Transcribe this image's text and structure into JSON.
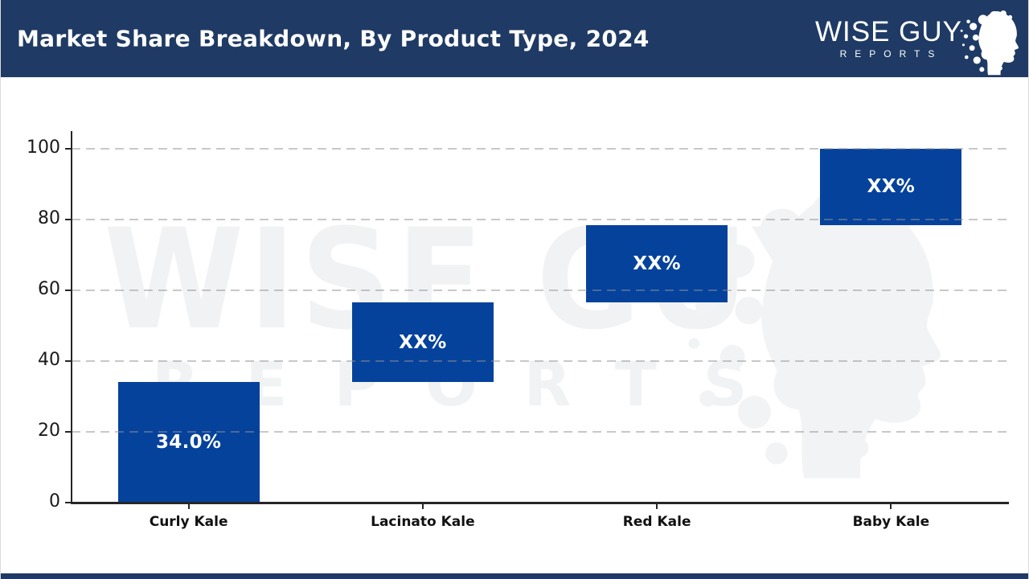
{
  "header": {
    "title": "Market Share Breakdown, By Product Type, 2024",
    "bg_color": "#1f3a64",
    "logo": {
      "line1": "WISE GUY",
      "line2": "REPORTS"
    }
  },
  "watermark": {
    "line1": "WISE GUY",
    "line2": "REPORTS"
  },
  "chart_data": {
    "type": "bar",
    "subtype": "waterfall",
    "title": "Market Share Breakdown, By Product Type, 2024",
    "categories": [
      "Curly Kale",
      "Lacinato Kale",
      "Red Kale",
      "Baby Kale"
    ],
    "segments": [
      {
        "category": "Curly Kale",
        "start": 0,
        "end": 34,
        "label": "34.0%"
      },
      {
        "category": "Lacinato Kale",
        "start": 34,
        "end": 56.5,
        "label": "XX%"
      },
      {
        "category": "Red Kale",
        "start": 56.5,
        "end": 78.5,
        "label": "XX%"
      },
      {
        "category": "Baby Kale",
        "start": 78.5,
        "end": 100,
        "label": "XX%"
      }
    ],
    "values": [
      34,
      22.5,
      22,
      21.5
    ],
    "xlabel": "",
    "ylabel": "",
    "ylim": [
      0,
      105
    ],
    "yticks": [
      0,
      20,
      40,
      60,
      80,
      100
    ],
    "grid": "horizontal dashed gridlines over bars",
    "legend": "none",
    "bar_color": "#05429c",
    "bar_label_color": "#ffffff",
    "axis_color": "#262626",
    "gridline_color": "#cfcfcf"
  },
  "footer": {
    "bg_color": "#1f3a64"
  }
}
